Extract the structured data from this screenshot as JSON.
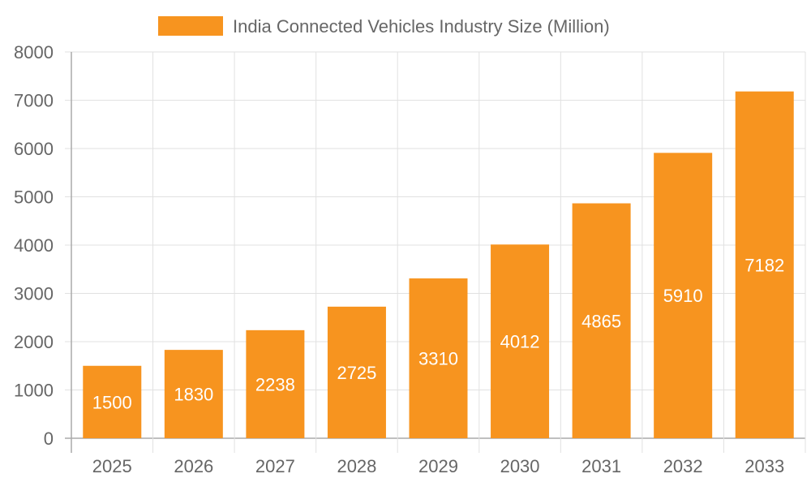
{
  "chart_data": {
    "type": "bar",
    "legend": {
      "label": "India Connected Vehicles Industry Size (Million)",
      "placement": "top"
    },
    "categories": [
      "2025",
      "2026",
      "2027",
      "2028",
      "2029",
      "2030",
      "2031",
      "2032",
      "2033"
    ],
    "series": [
      {
        "name": "India Connected Vehicles Industry Size (Million)",
        "values": [
          1500,
          1830,
          2238,
          2725,
          3310,
          4012,
          4865,
          5910,
          7182
        ]
      }
    ],
    "ylim": [
      0,
      8000
    ],
    "yticks": [
      0,
      1000,
      2000,
      3000,
      4000,
      5000,
      6000,
      7000,
      8000
    ],
    "grid": true,
    "data_labels": true,
    "colors": {
      "bar": "#F7941F",
      "text": "#666666",
      "grid": "#e1e1e1",
      "data_label": "#ffffff"
    }
  }
}
